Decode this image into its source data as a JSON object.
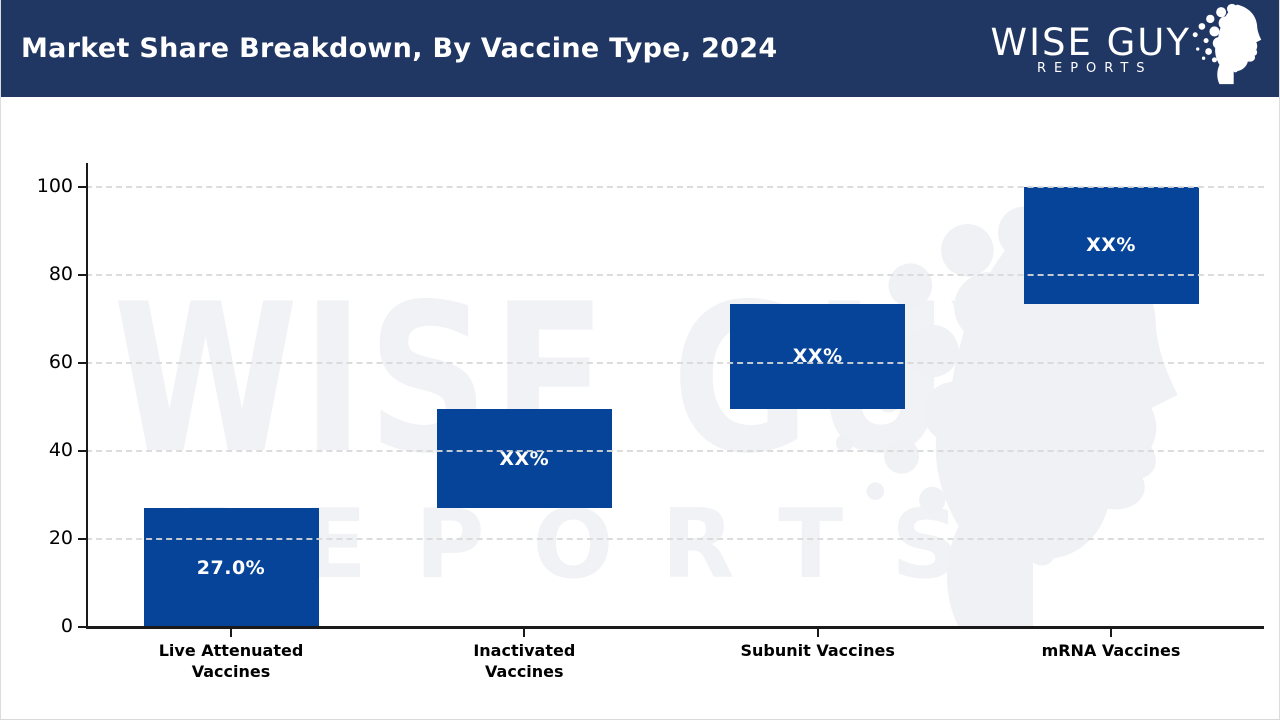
{
  "header": {
    "title": "Market Share Breakdown, By Vaccine Type, 2024",
    "logo": {
      "line1": "WISE GUY",
      "line2": "REPORTS"
    }
  },
  "watermark": {
    "line1": "WISE GUY",
    "line2": "REPORTS"
  },
  "chart_data": {
    "type": "bar",
    "variant": "waterfall-breakdown",
    "title": "Market Share Breakdown, By Vaccine Type, 2024",
    "categories": [
      "Live Attenuated Vaccines",
      "Inactivated Vaccines",
      "Subunit Vaccines",
      "mRNA Vaccines"
    ],
    "category_lines": [
      [
        "Live Attenuated",
        "Vaccines"
      ],
      [
        "Inactivated",
        "Vaccines"
      ],
      [
        "Subunit Vaccines"
      ],
      [
        "mRNA Vaccines"
      ]
    ],
    "segments": [
      {
        "category": "Live Attenuated Vaccines",
        "start": 0,
        "end": 27,
        "label": "27.0%"
      },
      {
        "category": "Inactivated Vaccines",
        "start": 27,
        "end": 49.5,
        "label": "XX%"
      },
      {
        "category": "Subunit Vaccines",
        "start": 49.5,
        "end": 73.5,
        "label": "XX%"
      },
      {
        "category": "mRNA Vaccines",
        "start": 73.5,
        "end": 100,
        "label": "XX%"
      }
    ],
    "yticks": [
      0,
      20,
      40,
      60,
      80,
      100
    ],
    "ylim": [
      0,
      105
    ],
    "xlabel": "",
    "ylabel": "",
    "grid": "horizontal-dashed",
    "legend": "none",
    "bar_color": "#06449A",
    "gridline_color": "#d9d9d9",
    "axis_color": "#1a1a1a",
    "header_bg_color": "#203663",
    "watermark_color": "#f1f2f5"
  }
}
